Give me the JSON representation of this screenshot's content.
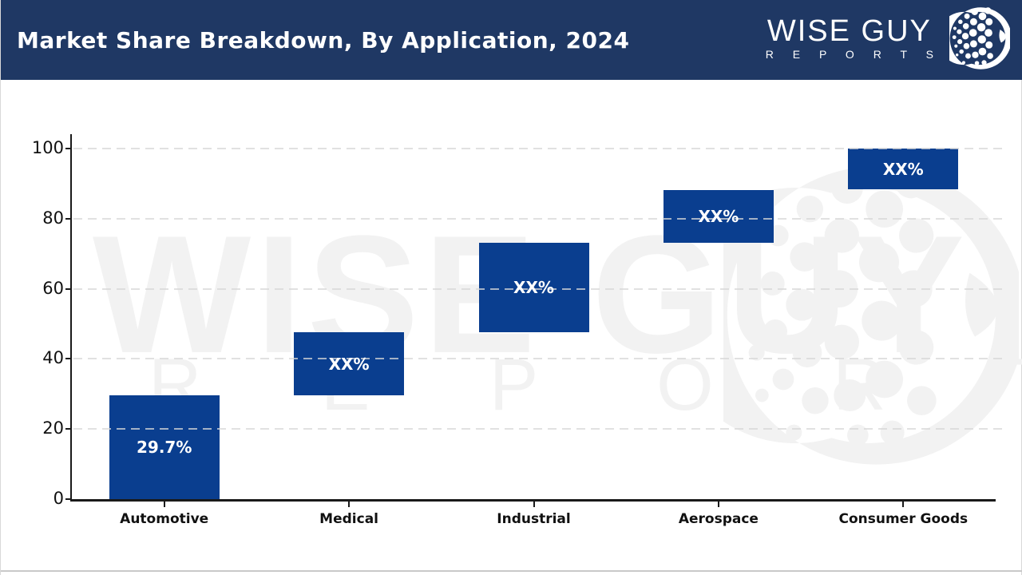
{
  "header": {
    "title": "Market Share Breakdown, By Application, 2024",
    "logo": {
      "line1": "WISE GUY",
      "line2": "R E P O R T S"
    }
  },
  "watermark": {
    "line1": "WISE GUY",
    "line2": "R E P O R T S"
  },
  "chart_data": {
    "type": "bar",
    "subtype": "waterfall",
    "title": "Market Share Breakdown, By Application, 2024",
    "categories": [
      "Automotive",
      "Medical",
      "Industrial",
      "Aerospace",
      "Consumer Goods"
    ],
    "bars": [
      {
        "category": "Automotive",
        "start": 0,
        "end": 29.7,
        "label": "29.7%"
      },
      {
        "category": "Medical",
        "start": 29.7,
        "end": 47.5,
        "label": "XX%"
      },
      {
        "category": "Industrial",
        "start": 47.5,
        "end": 73.2,
        "label": "XX%"
      },
      {
        "category": "Aerospace",
        "start": 73.2,
        "end": 88.2,
        "label": "XX%"
      },
      {
        "category": "Consumer Goods",
        "start": 88.3,
        "end": 100,
        "label": "XX%"
      }
    ],
    "xlabel": "",
    "ylabel": "",
    "ylim": [
      0,
      100
    ],
    "yticks": [
      0,
      20,
      40,
      60,
      80,
      100
    ],
    "grid": "horizontal-dashed",
    "legend": "none"
  },
  "colors": {
    "header_bg": "#1f3864",
    "bar": "#0a3e8f",
    "bar_label": "#ffffff",
    "grid": "#d7d7d7",
    "axis": "#1a1a1a",
    "watermark": "#f2f2f2"
  }
}
